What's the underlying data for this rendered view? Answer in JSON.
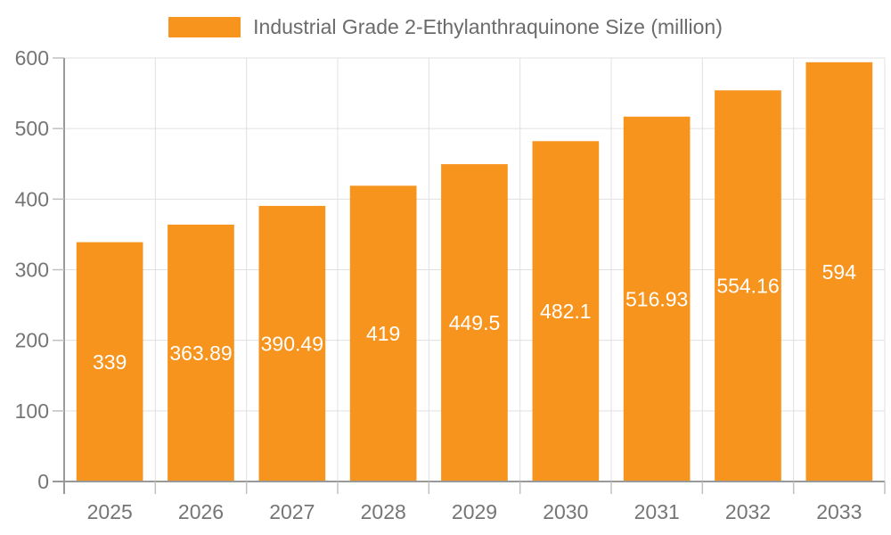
{
  "legend": {
    "label": "Industrial Grade 2-Ethylanthraquinone Size (million)",
    "swatch_color": "#F7941E"
  },
  "chart_data": {
    "type": "bar",
    "title": "Industrial Grade 2-Ethylanthraquinone Size (million)",
    "categories": [
      "2025",
      "2026",
      "2027",
      "2028",
      "2029",
      "2030",
      "2031",
      "2032",
      "2033"
    ],
    "values": [
      339,
      363.89,
      390.49,
      419,
      449.5,
      482.1,
      516.93,
      554.16,
      594
    ],
    "value_labels": [
      "339",
      "363.89",
      "390.49",
      "419",
      "449.5",
      "482.1",
      "516.93",
      "554.16",
      "594"
    ],
    "xlabel": "",
    "ylabel": "",
    "ylim": [
      0,
      600
    ],
    "y_ticks": [
      0,
      100,
      200,
      300,
      400,
      500,
      600
    ],
    "y_tick_labels": [
      "0",
      "100",
      "200",
      "300",
      "400",
      "500",
      "600"
    ],
    "grid": true,
    "legend_position": "top-center",
    "colors": {
      "bar": "#F7941E",
      "bar_value_label": "#ffffff",
      "axis_line": "#999999",
      "grid_line": "#e0e0e0",
      "tick_mark": "#c0c0c0",
      "tick_label": "#757575",
      "background": "#ffffff"
    }
  }
}
